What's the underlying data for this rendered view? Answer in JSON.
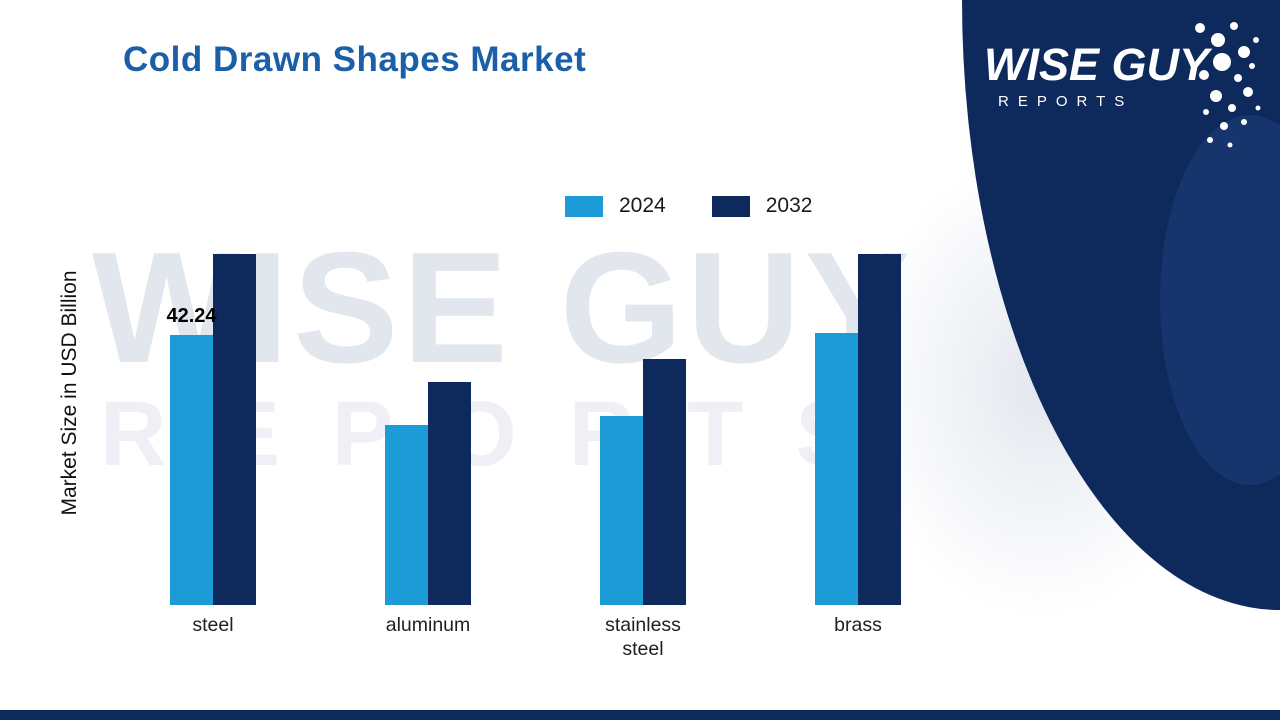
{
  "page": {
    "title": "Cold Drawn Shapes Market"
  },
  "logo": {
    "wordmark": "WISE GUY",
    "subtext": "REPORTS"
  },
  "watermark": {
    "line1": "WISE GUY",
    "line2": "REPORTS"
  },
  "colors": {
    "accent_blue": "#1d9bd7",
    "navy": "#0e2a5c",
    "title_blue": "#1b5fa8"
  },
  "chart_data": {
    "type": "bar",
    "title": "Cold Drawn Shapes Market",
    "categories": [
      "steel",
      "aluminum",
      "stainless steel",
      "brass"
    ],
    "series": [
      {
        "name": "2024",
        "color": "#1d9bd7",
        "values": [
          42.24,
          28.2,
          29.6,
          42.5
        ]
      },
      {
        "name": "2032",
        "color": "#0e2a5c",
        "values": [
          54.8,
          34.8,
          38.5,
          54.8
        ]
      }
    ],
    "xlabel": "",
    "ylabel": "Market Size in USD Billion",
    "ylim": [
      0,
      60
    ],
    "grid": false,
    "legend_position": "top",
    "data_label": {
      "series": "2024",
      "category": "steel",
      "text": "42.24"
    }
  }
}
